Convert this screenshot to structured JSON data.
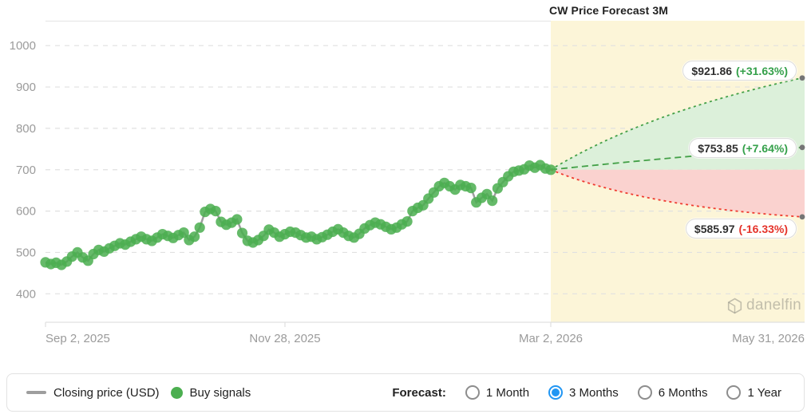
{
  "header": {
    "title": "CW Price Forecast 3M"
  },
  "watermark": {
    "label": "danelfin"
  },
  "colors": {
    "buy_signal": "#4caf50",
    "closing_line": "#9e9e9e",
    "forecast_up_line": "#43a047",
    "forecast_down_line": "#ef3b2f",
    "forecast_bg": "#fcf5d8",
    "up_fill": "#dcf0da",
    "down_fill": "#fad2cf",
    "grid_line": "#e0e0e0",
    "axis_text": "#9b9b9b",
    "end_dot": "#757575",
    "selected_radio": "#2196f3"
  },
  "forecast_labels": {
    "high": {
      "price": "$921.86",
      "pct": "(+31.63%)"
    },
    "mid": {
      "price": "$753.85",
      "pct": "(+7.64%)"
    },
    "low": {
      "price": "$585.97",
      "pct": "(-16.33%)"
    }
  },
  "legend": {
    "closing_label": "Closing price (USD)",
    "buy_label": "Buy signals",
    "forecast_label": "Forecast:",
    "options": [
      {
        "label": "1 Month",
        "selected": false
      },
      {
        "label": "3 Months",
        "selected": true
      },
      {
        "label": "6 Months",
        "selected": false
      },
      {
        "label": "1 Year",
        "selected": false
      }
    ]
  },
  "chart_data": {
    "type": "line",
    "title": "CW Price Forecast 3M",
    "ylabel": "Closing price (USD)",
    "ylim": [
      380,
      1050
    ],
    "yticks": [
      400,
      500,
      600,
      700,
      800,
      900,
      1000
    ],
    "xticklabels": [
      "Sep 2, 2025",
      "Nov 28, 2025",
      "Mar 2, 2026",
      "May 31, 2026"
    ],
    "grid": true,
    "legend_position": "bottom",
    "series": [
      {
        "name": "Closing price (USD)",
        "buy_signals": "all points",
        "values": [
          476,
          472,
          475,
          470,
          478,
          490,
          500,
          488,
          480,
          496,
          506,
          502,
          510,
          516,
          522,
          519,
          526,
          532,
          538,
          532,
          528,
          536,
          544,
          540,
          535,
          542,
          548,
          530,
          538,
          560,
          598,
          605,
          600,
          574,
          567,
          572,
          580,
          547,
          528,
          524,
          530,
          540,
          555,
          548,
          538,
          544,
          550,
          548,
          542,
          536,
          538,
          532,
          537,
          543,
          550,
          556,
          548,
          540,
          536,
          545,
          558,
          566,
          572,
          568,
          562,
          556,
          560,
          568,
          575,
          600,
          608,
          614,
          630,
          645,
          660,
          668,
          660,
          652,
          663,
          660,
          656,
          621,
          632,
          641,
          625,
          655,
          670,
          684,
          695,
          698,
          701,
          710,
          705,
          711,
          703,
          700
        ]
      }
    ],
    "forecast": {
      "horizon": "3M",
      "start_label": "Mar 2, 2026",
      "end_label": "May 31, 2026",
      "start_value": 700,
      "high": {
        "value": 921.86,
        "change_pct": 31.63
      },
      "mid": {
        "value": 753.85,
        "change_pct": 7.64
      },
      "low": {
        "value": 585.97,
        "change_pct": -16.33
      }
    }
  }
}
